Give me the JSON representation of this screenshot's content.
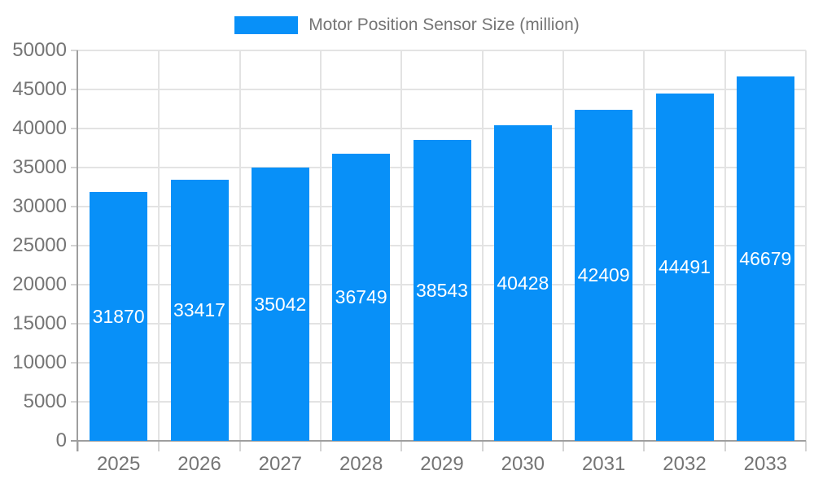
{
  "chart_data": {
    "type": "bar",
    "title": "Motor Position Sensor Size (million)",
    "legend_entries": [
      "Motor Position Sensor Size (million)"
    ],
    "legend_position": "top",
    "categories": [
      "2025",
      "2026",
      "2027",
      "2028",
      "2029",
      "2030",
      "2031",
      "2032",
      "2033"
    ],
    "series": [
      {
        "name": "Motor Position Sensor Size (million)",
        "values": [
          31870,
          33417,
          35042,
          36749,
          38543,
          40428,
          42409,
          44491,
          46679
        ]
      }
    ],
    "value_labels": [
      "31870",
      "33417",
      "35042",
      "36749",
      "38543",
      "40428",
      "42409",
      "44491",
      "46679"
    ],
    "xlabel": "",
    "ylabel": "",
    "ylim": [
      0,
      50000
    ],
    "ytick_step": 5000,
    "ytick_labels": [
      "0",
      "5000",
      "10000",
      "15000",
      "20000",
      "25000",
      "30000",
      "35000",
      "40000",
      "45000",
      "50000"
    ],
    "grid": true,
    "colors": {
      "bar": "#0890f8",
      "grid_line": "#e3e3e3",
      "axis_line": "#9e9e9e",
      "tick_mark": "#d4d4d4",
      "axis_text": "#757575",
      "legend_text": "#757575",
      "value_text": "#ffffff",
      "background": "#ffffff"
    }
  }
}
